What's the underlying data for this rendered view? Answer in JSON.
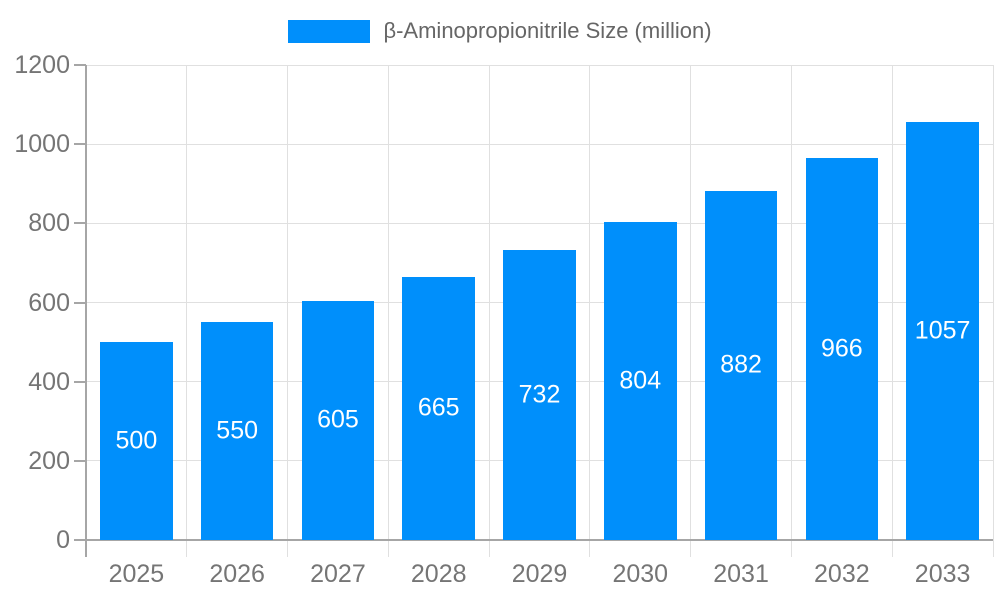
{
  "chart_data": {
    "type": "bar",
    "categories": [
      "2025",
      "2026",
      "2027",
      "2028",
      "2029",
      "2030",
      "2031",
      "2032",
      "2033"
    ],
    "series": [
      {
        "name": "β-Aminopropionitrile Size (million)",
        "values": [
          500,
          550,
          605,
          665,
          732,
          804,
          882,
          966,
          1057
        ]
      }
    ],
    "title": "",
    "xlabel": "",
    "ylabel": "",
    "ylim": [
      0,
      1200
    ],
    "ytick_step": 200,
    "ytick_labels": [
      "0",
      "200",
      "400",
      "600",
      "800",
      "1000",
      "1200"
    ],
    "grid": true,
    "legend_position": "top-center",
    "value_labels": "inside-center",
    "colors": {
      "bar": "#008FFB",
      "grid": "#e0e0e0",
      "axis": "#a6a6a6",
      "tick_label": "#757575",
      "legend_text": "#666666",
      "value_label": "#ffffff",
      "background": "#ffffff"
    }
  }
}
